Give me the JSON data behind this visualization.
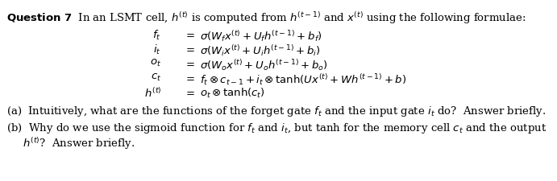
{
  "bg_color": "#ffffff",
  "figsize": [
    6.91,
    2.26
  ],
  "dpi": 100,
  "text_color": "#000000",
  "font_size": 9.5,
  "eq_font_size": 9.5,
  "q_font_size": 9.5,
  "title": "Question 7",
  "title_rest": "  In an LSMT cell, $h^{(t)}$ is computed from $h^{(t-1)}$ and $x^{(t)}$ using the following formulae:",
  "equations": [
    "$f_t$",
    "$i_t$",
    "$o_t$",
    "$c_t$",
    "$h^{(t)}$"
  ],
  "eq_rhs": [
    "$= \\sigma(W_f x^{(t)} + U_f h^{(t-1)} + b_f)$",
    "$= \\sigma(W_i x^{(t)} + U_i h^{(t-1)} + b_i)$",
    "$= \\sigma(W_o x^{(t)} + U_o h^{(t-1)} + b_o)$",
    "$= f_t \\otimes c_{t-1} + i_t \\otimes \\tanh(Ux^{(t)} + Wh^{(t-1)} + b)$",
    "$= o_t \\otimes \\tanh(c_t)$"
  ],
  "q_a": "(a)  Intuitively, what are the functions of the forget gate $f_t$ and the input gate $i_t$ do?  Answer briefly.",
  "q_b_line1": "(b)  Why do we use the sigmoid function for $f_t$ and $i_t$, but tanh for the memory cell $c_t$ and the output",
  "q_b_line2": "$h^{(t)}$?  Answer briefly."
}
